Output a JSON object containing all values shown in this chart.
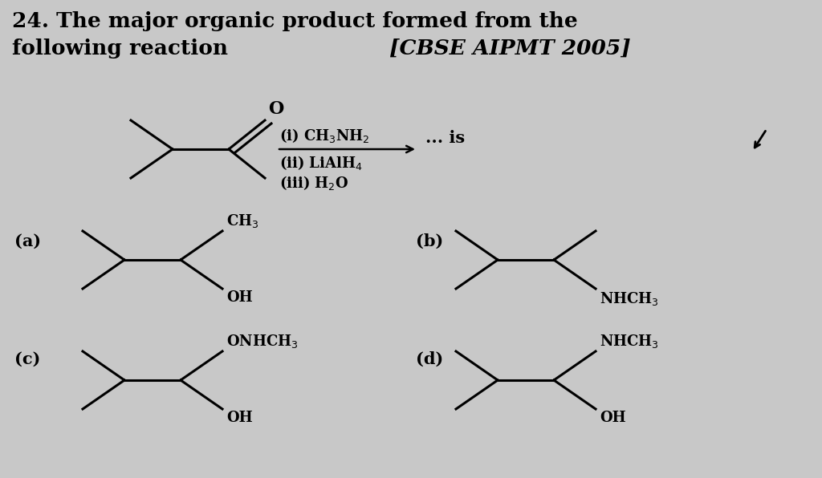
{
  "bg_color": "#c8c8c8",
  "title_line1": "24. The major organic product formed from the",
  "title_line2": "following reaction",
  "title_ref": "[CBSE AIPMT 2005]",
  "title_fontsize": 19,
  "body_fontsize": 15,
  "sub_fontsize": 13,
  "fig_width": 10.24,
  "fig_height": 5.96
}
